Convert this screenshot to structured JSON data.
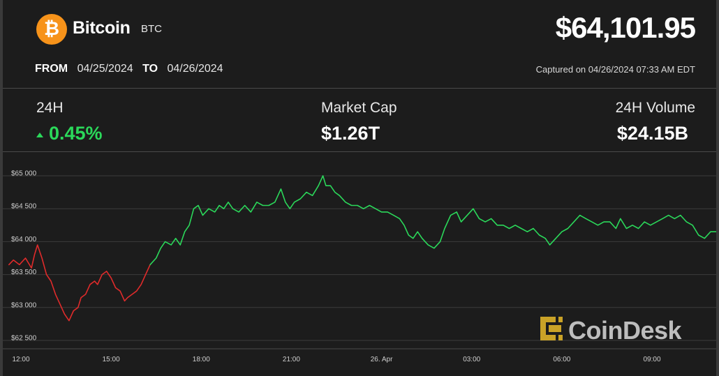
{
  "header": {
    "logo_glyph": "₿",
    "coin_name": "Bitcoin",
    "coin_ticker": "BTC",
    "price": "$64,101.95",
    "from_label": "FROM",
    "from_date": "04/25/2024",
    "to_label": "TO",
    "to_date": "04/26/2024",
    "captured": "Captured on 04/26/2024 07:33 AM EDT"
  },
  "stats": {
    "change_label": "24H",
    "change_value": "0.45%",
    "change_direction": "up",
    "market_cap_label": "Market Cap",
    "market_cap_value": "$1.26T",
    "volume_label": "24H Volume",
    "volume_value": "$24.15B"
  },
  "brand": {
    "name": "CoinDesk"
  },
  "colors": {
    "background": "#1c1c1c",
    "up": "#2bd85a",
    "down": "#e02b2b",
    "grid": "#3d3d3d",
    "brand_mark": "#c9a227"
  },
  "chart_data": {
    "type": "line",
    "title": "",
    "xlabel": "",
    "ylabel": "",
    "y_ticks": [
      {
        "value": 65000,
        "label": "$65 000"
      },
      {
        "value": 64500,
        "label": "$64 500"
      },
      {
        "value": 64000,
        "label": "$64 000"
      },
      {
        "value": 63500,
        "label": "$63 500"
      },
      {
        "value": 63000,
        "label": "$63 000"
      },
      {
        "value": 62500,
        "label": "$62 500"
      }
    ],
    "x_ticks": [
      {
        "t": 0,
        "label": "12:00"
      },
      {
        "t": 3,
        "label": "15:00"
      },
      {
        "t": 6,
        "label": "18:00"
      },
      {
        "t": 9,
        "label": "21:00"
      },
      {
        "t": 12,
        "label": "26. Apr"
      },
      {
        "t": 15,
        "label": "03:00"
      },
      {
        "t": 18,
        "label": "06:00"
      },
      {
        "t": 21,
        "label": "09:00"
      }
    ],
    "x_unit": "hours from 04/25/2024 12:00",
    "xlim": [
      -0.4,
      23.2
    ],
    "ylim": [
      62400,
      65250
    ],
    "grid": true,
    "series": [
      {
        "trend": "down",
        "values": [
          [
            -0.4,
            63650
          ],
          [
            -0.25,
            63720
          ],
          [
            -0.05,
            63650
          ],
          [
            0.15,
            63750
          ],
          [
            0.35,
            63600
          ],
          [
            0.45,
            63800
          ],
          [
            0.55,
            63950
          ],
          [
            0.7,
            63750
          ],
          [
            0.85,
            63500
          ],
          [
            1.0,
            63400
          ],
          [
            1.15,
            63200
          ],
          [
            1.3,
            63050
          ],
          [
            1.45,
            62900
          ],
          [
            1.6,
            62800
          ],
          [
            1.75,
            62950
          ],
          [
            1.9,
            63000
          ],
          [
            2.0,
            63150
          ],
          [
            2.15,
            63200
          ],
          [
            2.3,
            63350
          ],
          [
            2.45,
            63400
          ],
          [
            2.55,
            63350
          ],
          [
            2.7,
            63500
          ],
          [
            2.85,
            63550
          ],
          [
            3.0,
            63450
          ],
          [
            3.15,
            63300
          ],
          [
            3.3,
            63250
          ],
          [
            3.45,
            63100
          ],
          [
            3.55,
            63150
          ],
          [
            3.7,
            63200
          ],
          [
            3.85,
            63250
          ],
          [
            4.0,
            63350
          ],
          [
            4.15,
            63500
          ],
          [
            4.3,
            63650
          ]
        ]
      },
      {
        "trend": "up",
        "values": [
          [
            4.3,
            63650
          ],
          [
            4.5,
            63750
          ],
          [
            4.65,
            63900
          ],
          [
            4.8,
            64000
          ],
          [
            5.0,
            63950
          ],
          [
            5.15,
            64050
          ],
          [
            5.3,
            63950
          ],
          [
            5.45,
            64150
          ],
          [
            5.6,
            64250
          ],
          [
            5.75,
            64500
          ],
          [
            5.9,
            64550
          ],
          [
            6.05,
            64400
          ],
          [
            6.25,
            64500
          ],
          [
            6.45,
            64450
          ],
          [
            6.6,
            64550
          ],
          [
            6.75,
            64500
          ],
          [
            6.9,
            64600
          ],
          [
            7.05,
            64500
          ],
          [
            7.25,
            64450
          ],
          [
            7.45,
            64550
          ],
          [
            7.65,
            64450
          ],
          [
            7.85,
            64600
          ],
          [
            8.05,
            64550
          ],
          [
            8.25,
            64550
          ],
          [
            8.45,
            64600
          ],
          [
            8.65,
            64800
          ],
          [
            8.8,
            64600
          ],
          [
            8.95,
            64500
          ],
          [
            9.1,
            64600
          ],
          [
            9.3,
            64650
          ],
          [
            9.5,
            64750
          ],
          [
            9.7,
            64700
          ],
          [
            9.9,
            64850
          ],
          [
            10.05,
            65000
          ],
          [
            10.15,
            64850
          ],
          [
            10.3,
            64850
          ],
          [
            10.45,
            64750
          ],
          [
            10.6,
            64700
          ],
          [
            10.8,
            64600
          ],
          [
            11.0,
            64550
          ],
          [
            11.2,
            64550
          ],
          [
            11.4,
            64500
          ],
          [
            11.6,
            64550
          ],
          [
            11.8,
            64500
          ],
          [
            12.0,
            64450
          ],
          [
            12.2,
            64450
          ],
          [
            12.4,
            64400
          ],
          [
            12.6,
            64350
          ],
          [
            12.75,
            64250
          ],
          [
            12.9,
            64100
          ],
          [
            13.05,
            64050
          ],
          [
            13.2,
            64150
          ],
          [
            13.35,
            64050
          ],
          [
            13.55,
            63950
          ],
          [
            13.75,
            63900
          ],
          [
            13.95,
            64000
          ],
          [
            14.1,
            64200
          ],
          [
            14.3,
            64400
          ],
          [
            14.5,
            64450
          ],
          [
            14.65,
            64300
          ],
          [
            14.85,
            64400
          ],
          [
            15.05,
            64500
          ],
          [
            15.25,
            64350
          ],
          [
            15.45,
            64300
          ],
          [
            15.65,
            64350
          ],
          [
            15.85,
            64250
          ],
          [
            16.05,
            64250
          ],
          [
            16.25,
            64200
          ],
          [
            16.45,
            64250
          ],
          [
            16.65,
            64200
          ],
          [
            16.85,
            64150
          ],
          [
            17.05,
            64200
          ],
          [
            17.25,
            64100
          ],
          [
            17.45,
            64050
          ],
          [
            17.6,
            63950
          ],
          [
            17.8,
            64050
          ],
          [
            18.0,
            64150
          ],
          [
            18.2,
            64200
          ],
          [
            18.4,
            64300
          ],
          [
            18.6,
            64400
          ],
          [
            18.8,
            64350
          ],
          [
            19.0,
            64300
          ],
          [
            19.2,
            64250
          ],
          [
            19.4,
            64300
          ],
          [
            19.6,
            64300
          ],
          [
            19.8,
            64200
          ],
          [
            19.95,
            64350
          ],
          [
            20.15,
            64200
          ],
          [
            20.35,
            64250
          ],
          [
            20.55,
            64200
          ],
          [
            20.75,
            64300
          ],
          [
            20.95,
            64250
          ],
          [
            21.15,
            64300
          ],
          [
            21.35,
            64350
          ],
          [
            21.55,
            64400
          ],
          [
            21.75,
            64350
          ],
          [
            21.95,
            64400
          ],
          [
            22.15,
            64300
          ],
          [
            22.35,
            64250
          ],
          [
            22.55,
            64100
          ],
          [
            22.75,
            64050
          ],
          [
            22.95,
            64150
          ],
          [
            23.2,
            64150
          ]
        ]
      }
    ]
  }
}
